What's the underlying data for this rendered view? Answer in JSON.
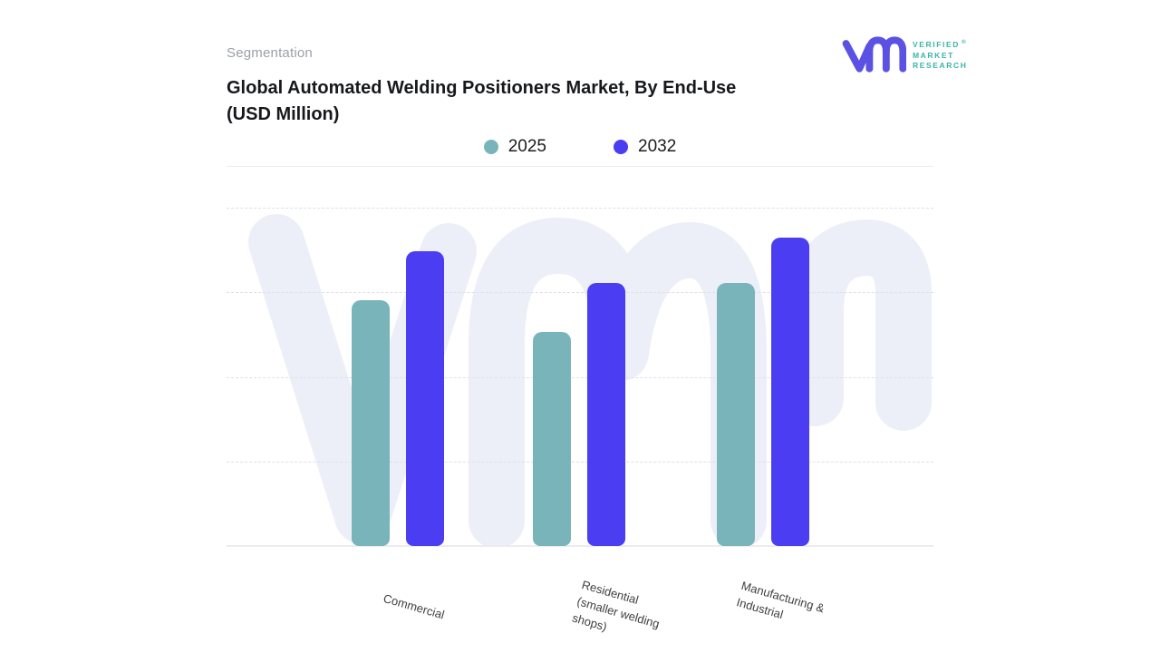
{
  "header": {
    "eyebrow": "Segmentation",
    "title_line1": "Global Automated Welding Positioners Market, By End-Use",
    "title_line2": "(USD Million)"
  },
  "logo": {
    "name": "Verified Market Research",
    "lines": [
      "VERIFIED",
      "MARKET",
      "RESEARCH"
    ],
    "registered_mark": "®",
    "monogram_color": "#5b50e4",
    "wordmark_color": "#3ab4a8"
  },
  "chart_data": {
    "type": "bar",
    "title": "Global Automated Welding Positioners Market, By End-Use (USD Million)",
    "categories": [
      "Commercial",
      "Residential (smaller welding shops)",
      "Manufacturing & Industrial"
    ],
    "series": [
      {
        "name": "2025",
        "color": "#7ab4bb",
        "values": [
          72.5,
          63,
          77.5
        ]
      },
      {
        "name": "2032",
        "color": "#4a3df2",
        "values": [
          87,
          77.5,
          91
        ]
      }
    ],
    "value_axis": {
      "unit": "USD Million",
      "tick_labels_visible": false,
      "range": [
        0,
        100
      ],
      "gridlines_percent": [
        0,
        25,
        50,
        75,
        100
      ],
      "note": "no numeric tick labels shown; values estimated as percent of plot height"
    },
    "legend_position": "top-center",
    "grid_style": "horizontal-dashed",
    "watermark": "vmr"
  },
  "x_labels": [
    {
      "lines": [
        "Commercial"
      ]
    },
    {
      "lines": [
        "Residential",
        "(smaller welding",
        "shops)"
      ]
    },
    {
      "lines": [
        "Manufacturing &",
        "Industrial"
      ]
    }
  ],
  "colors": {
    "series_2025": "#7ab4bb",
    "series_2032": "#4a3df2",
    "watermark": "#edeff8",
    "gridline": "#dfe0e7",
    "baseline": "#ececef",
    "title_text": "#17181c",
    "eyebrow_text": "#9aa0a8",
    "axis_label_text": "#3f3f42"
  }
}
